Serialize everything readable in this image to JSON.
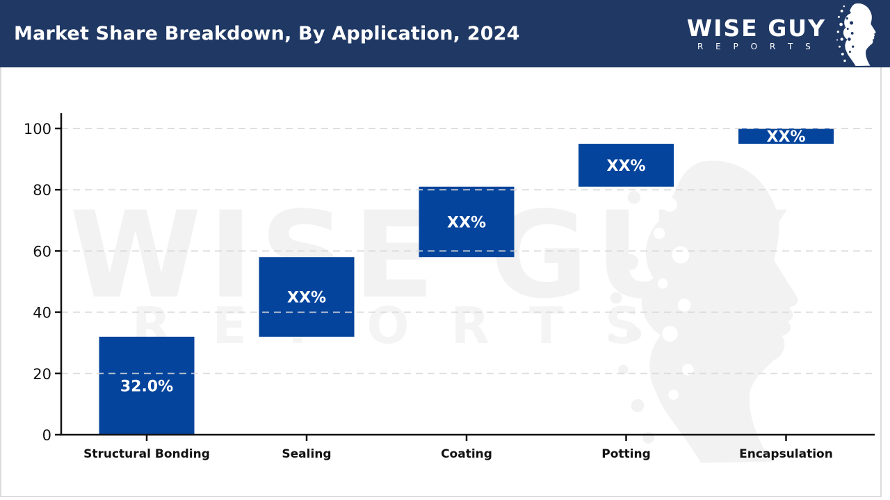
{
  "header": {
    "title": "Market Share Breakdown, By Application, 2024",
    "logo": {
      "line1": "WISE GUY",
      "line2": "R E P O R T S"
    }
  },
  "watermark": {
    "line1": "WISE GUY",
    "line2": "REPORTS"
  },
  "chart_data": {
    "type": "bar",
    "subtype": "waterfall",
    "title": "",
    "xlabel": "",
    "ylabel": "",
    "categories": [
      "Structural Bonding",
      "Sealing",
      "Coating",
      "Potting",
      "Encapsulation"
    ],
    "segments": [
      {
        "category": "Structural Bonding",
        "start": 0,
        "end": 32,
        "label": "32.0%"
      },
      {
        "category": "Sealing",
        "start": 32,
        "end": 58,
        "label": "XX%"
      },
      {
        "category": "Coating",
        "start": 58,
        "end": 81,
        "label": "XX%"
      },
      {
        "category": "Potting",
        "start": 81,
        "end": 95,
        "label": "XX%"
      },
      {
        "category": "Encapsulation",
        "start": 95,
        "end": 100,
        "label": "XX%"
      }
    ],
    "ylim": [
      0,
      100
    ],
    "yticks": [
      0,
      20,
      40,
      60,
      80,
      100
    ],
    "grid": "horizontal-dashed",
    "legend": "none",
    "bar_color": "#04449c",
    "bar_label_color": "#ffffff",
    "axis_color": "#111111",
    "gridline_color": "#d9d9d9"
  },
  "colors": {
    "header_bg": "#1f3864",
    "accent_blue": "#04449c",
    "watermark": "#f2f2f2",
    "frame_border": "#dcdcdc"
  }
}
